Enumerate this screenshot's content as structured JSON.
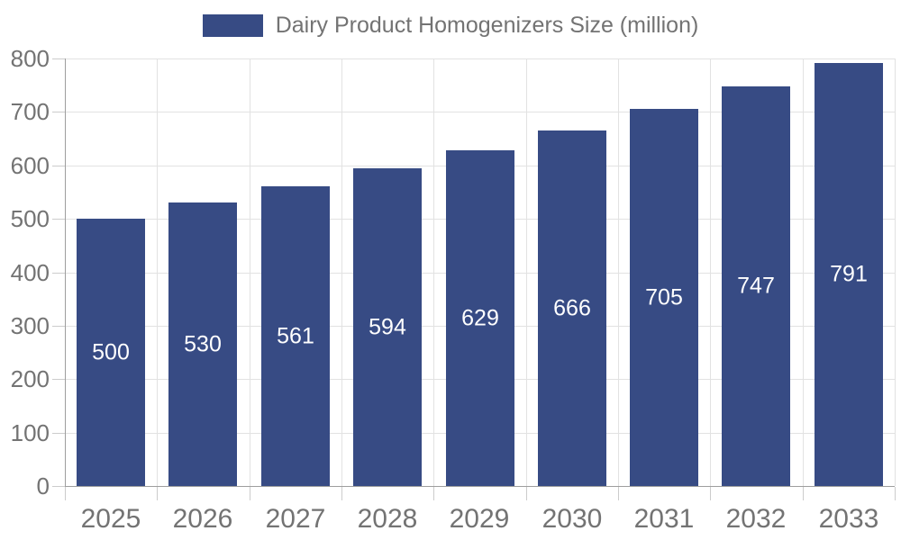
{
  "chart_data": {
    "type": "bar",
    "title": "Dairy Product Homogenizers Size (million)",
    "legend_entries": [
      "Dairy Product Homogenizers Size (million)"
    ],
    "legend_position": "top",
    "categories": [
      "2025",
      "2026",
      "2027",
      "2028",
      "2029",
      "2030",
      "2031",
      "2032",
      "2033"
    ],
    "values": [
      500,
      530,
      561,
      594,
      629,
      666,
      705,
      747,
      791
    ],
    "xlabel": "",
    "ylabel": "",
    "ylim": [
      0,
      800
    ],
    "yticks": [
      0,
      100,
      200,
      300,
      400,
      500,
      600,
      700,
      800
    ],
    "grid": true,
    "colors": {
      "bar": "#374b84",
      "value_label": "#ffffff",
      "axis_text": "#737373",
      "grid_line": "#e2e2e2",
      "axis_line": "#9e9e9e",
      "tick_line": "#cccccc"
    }
  }
}
